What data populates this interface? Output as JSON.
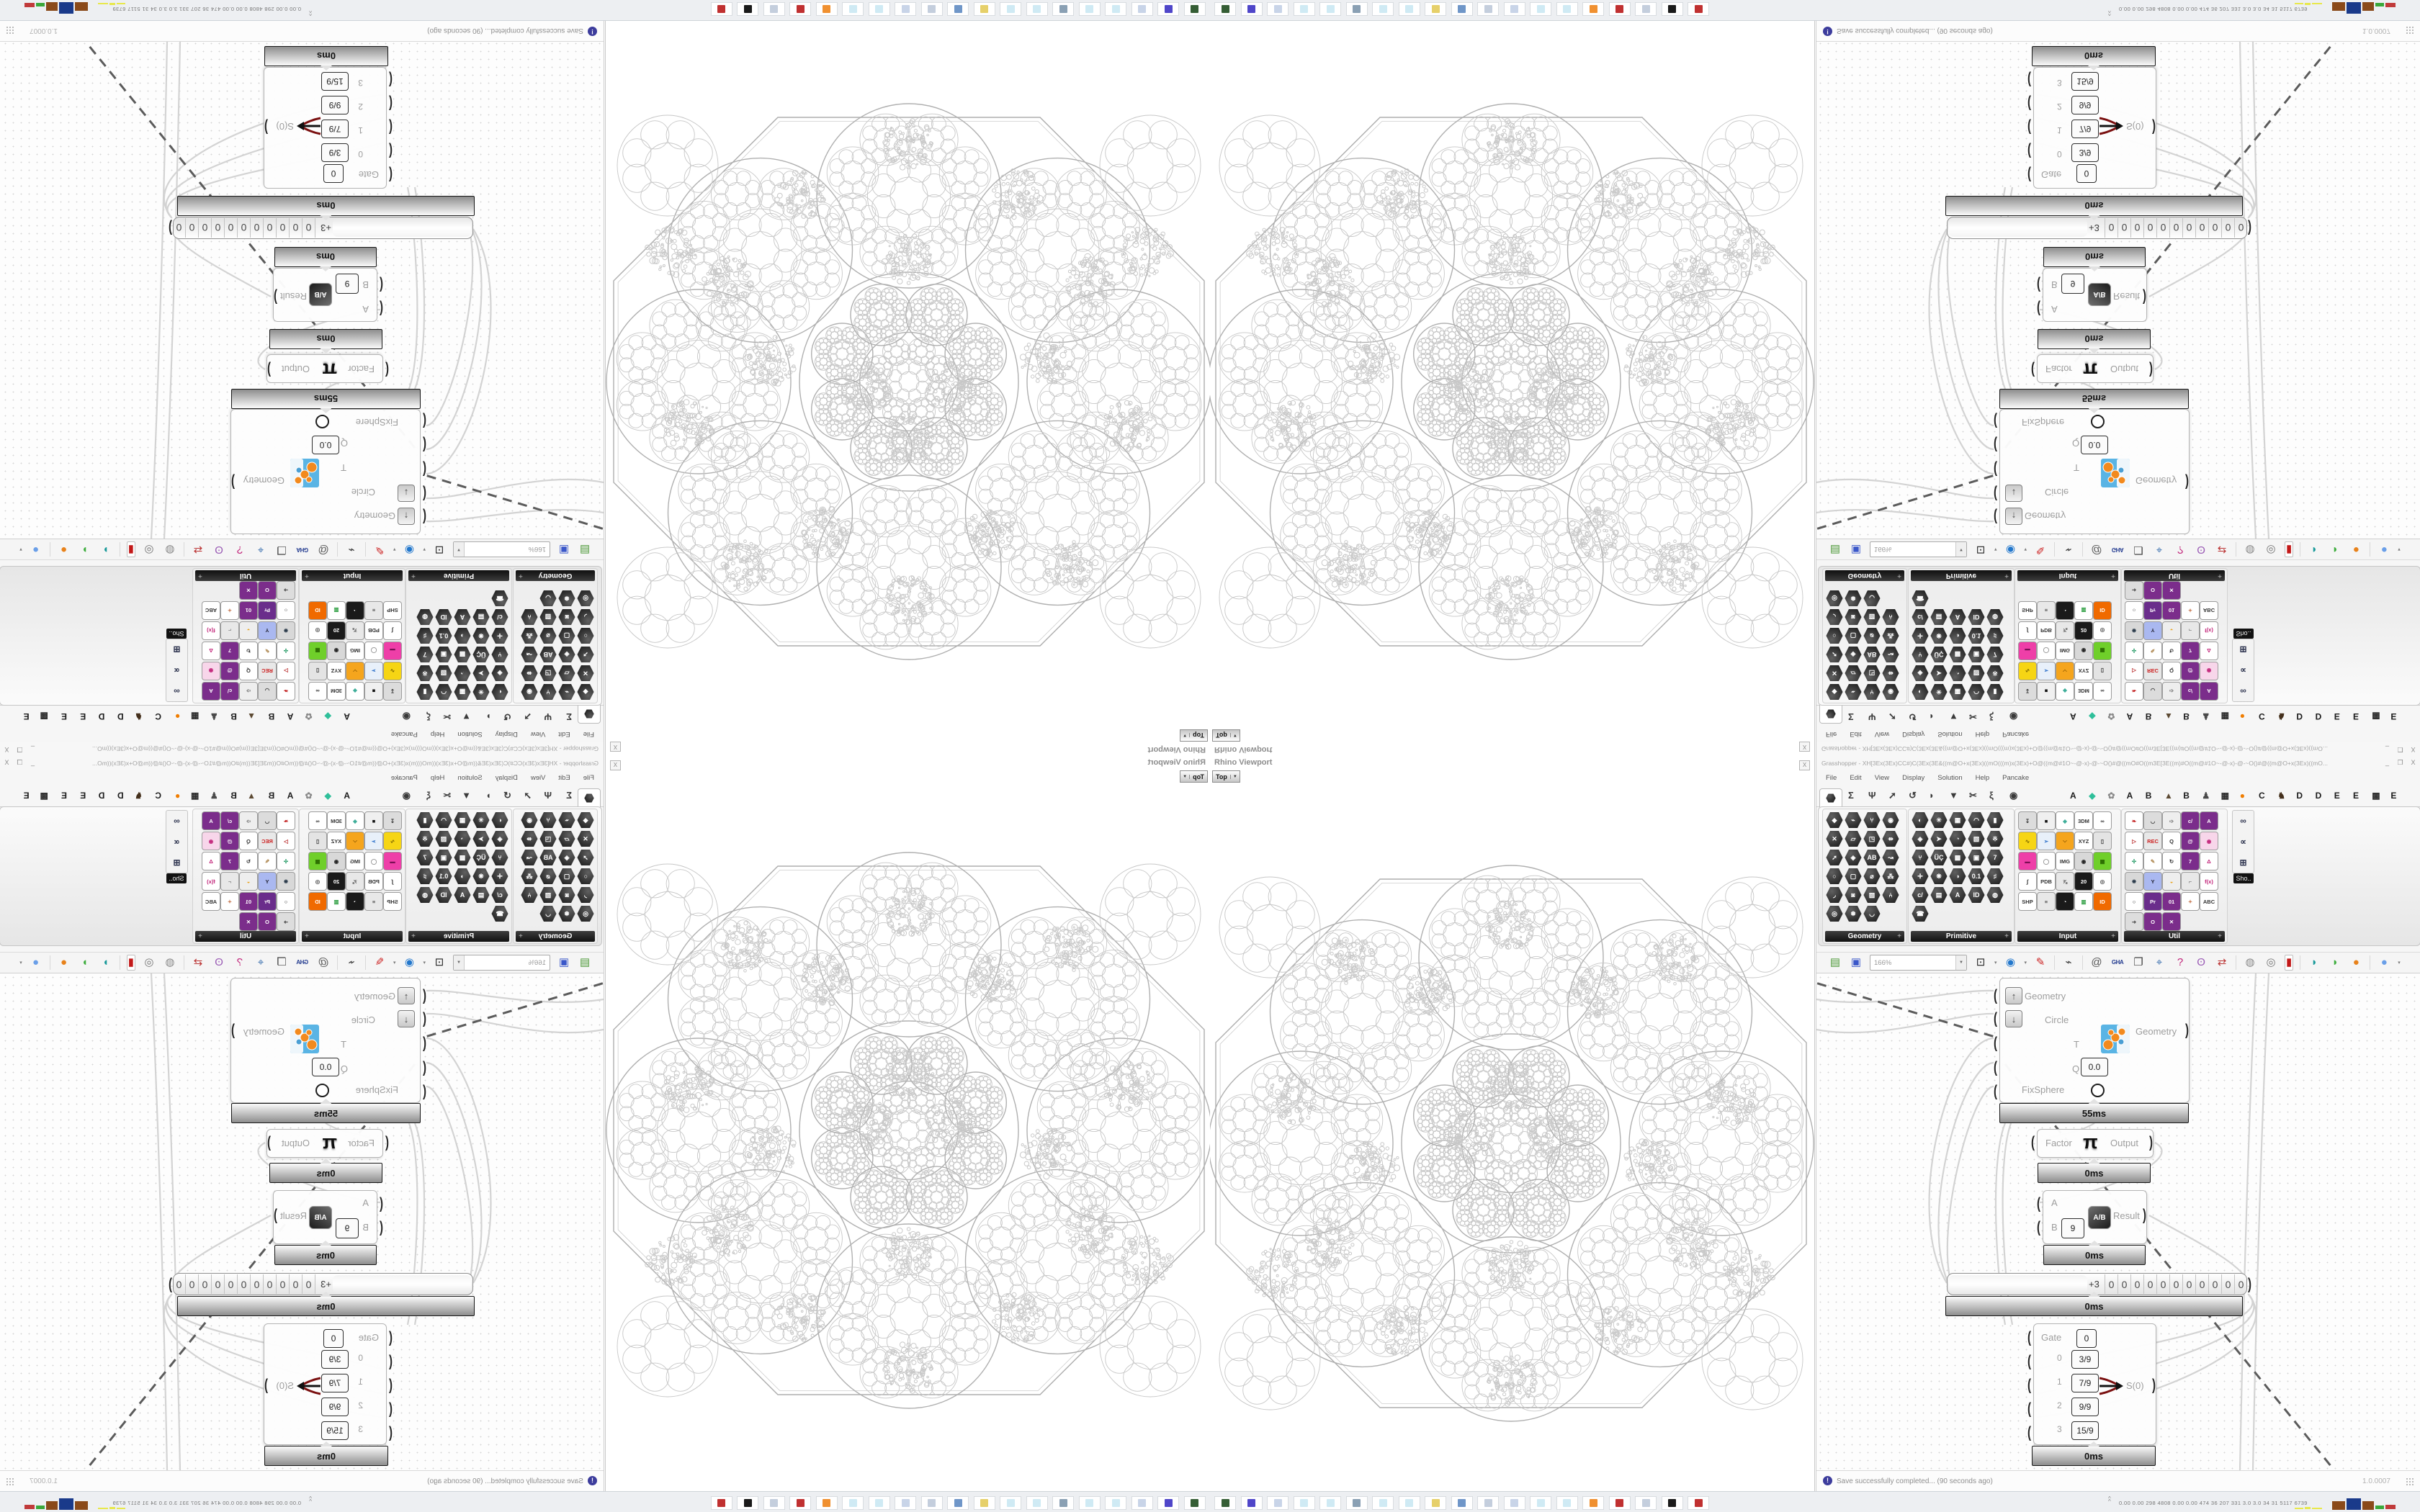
{
  "window": {
    "title": "Grasshopper - XH[3Ex(3Ex)CC#)C(3Ex(3E&((m@O+x(3Ex)((mO(((m)x(3Ex)+O@((m@#1O~-@-x)-@-~O()#@((mO#O((m3E[3E((m)#O((m@#1O~-@-x)-@-~O()#@((m@O+x(3Ex)((mO...",
    "controls": [
      "_",
      "❐",
      "X"
    ]
  },
  "rhino": {
    "panel_title": "Rhino Viewport",
    "viewport_tab": "Top",
    "close_label": "X"
  },
  "menu": {
    "items": [
      "File",
      "Edit",
      "View",
      "Display",
      "Solution",
      "Help",
      "Pancake"
    ]
  },
  "tabs": {
    "standard": [
      "Σ",
      "Ψ",
      "➚",
      "↺",
      "◗",
      "▼",
      "✂",
      "ξ",
      "◉"
    ],
    "plugins": [
      {
        "label": "A",
        "color": "#1a1a1a"
      },
      {
        "label": "◆",
        "color": "#2fbf9a"
      },
      {
        "label": "✿",
        "color": "#8a8a8a"
      },
      {
        "label": "A",
        "color": "#1a1a1a"
      },
      {
        "label": "B",
        "color": "#1a1a1a"
      },
      {
        "label": "▲",
        "color": "#5d4a33"
      },
      {
        "label": "B",
        "color": "#1a1a1a"
      },
      {
        "label": "♟",
        "color": "#4a4a4a"
      },
      {
        "label": "▦",
        "color": "#2a2a2a"
      },
      {
        "label": "●",
        "color": "#f07d00"
      },
      {
        "label": "C",
        "color": "#1a1a1a"
      },
      {
        "label": "♞",
        "color": "#44301c"
      },
      {
        "label": "D",
        "color": "#1a1a1a"
      },
      {
        "label": "D",
        "color": "#1a1a1a"
      },
      {
        "label": "E",
        "color": "#1a1a1a"
      },
      {
        "label": "E",
        "color": "#1a1a1a"
      },
      {
        "label": "▩",
        "color": "#2a2a2a"
      },
      {
        "label": "E",
        "color": "#1a1a1a"
      }
    ]
  },
  "panel": {
    "more_label": "+",
    "groups": [
      {
        "name": "Geometry",
        "type": "hex",
        "cols": 4,
        "icons": [
          "◆",
          "⌁",
          "⑂",
          "◉",
          "✕",
          "▱",
          "◳",
          "⇻",
          "➚",
          "◈",
          "AB",
          "↝",
          "○",
          "▢",
          "⌀",
          "⁂",
          "◞",
          "◙",
          "▨",
          "⑃",
          "◎",
          "❅",
          "◡"
        ]
      },
      {
        "name": "Primitive",
        "type": "hex",
        "cols": 5,
        "icons": [
          "◐",
          "✳",
          "▦",
          "◠",
          "▮",
          "◈",
          "➤",
          "◔",
          "▧",
          "※",
          "⑂",
          "ÜÇ",
          "▩",
          "▣",
          "7",
          "✛",
          "❋",
          "◑",
          "0.1",
          "♯",
          "c/",
          "▤",
          "A",
          "ID",
          "◍",
          "☎"
        ]
      },
      {
        "name": "Input",
        "type": "color",
        "cols": 5,
        "icons": [
          {
            "g": "↧",
            "c": "#dcdcdc",
            "f": "#333"
          },
          {
            "g": "■",
            "c": "#f0f0f0",
            "f": "#111"
          },
          {
            "g": "◆",
            "c": "#ffffff",
            "f": "#3fae9a"
          },
          {
            "g": "3DM",
            "c": "#ffffff",
            "f": "#333"
          },
          {
            "g": "∞",
            "c": "#ffffff",
            "f": "#333"
          },
          {
            "g": "∿",
            "c": "#f6d514",
            "f": "#7a6400"
          },
          {
            "g": "➢",
            "c": "#e8f0fa",
            "f": "#2b6fc9"
          },
          {
            "g": "⌵",
            "c": "#f5a51d",
            "f": "#8a5800"
          },
          {
            "g": "XYZ",
            "c": "#ffffff",
            "f": "#333"
          },
          {
            "g": "▯",
            "c": "#e4e4e4",
            "f": "#333"
          },
          {
            "g": "▬",
            "c": "#ee3fa8",
            "f": "#7a1054"
          },
          {
            "g": "◯",
            "c": "#ffffff",
            "f": "#888"
          },
          {
            "g": "IMG",
            "c": "#ffffff",
            "f": "#333"
          },
          {
            "g": "◉",
            "c": "#d8d8d8",
            "f": "#222"
          },
          {
            "g": "▦",
            "c": "#6fcf2a",
            "f": "#2a6a00"
          },
          {
            "g": "∫",
            "c": "#ffffff",
            "f": "#222"
          },
          {
            "g": "PDB",
            "c": "#ffffff",
            "f": "#333"
          },
          {
            "g": "⅞",
            "c": "#e8e8e8",
            "f": "#333"
          },
          {
            "g": "20",
            "c": "#1a1a1a",
            "f": "#fff"
          },
          {
            "g": "◎",
            "c": "#ffffff",
            "f": "#555"
          },
          {
            "g": "SHP",
            "c": "#ffffff",
            "f": "#333"
          },
          {
            "g": "≡",
            "c": "#e8e8e8",
            "f": "#333"
          },
          {
            "g": "◔",
            "c": "#1a1a1a",
            "f": "#fff"
          },
          {
            "g": "▥",
            "c": "#ffffff",
            "f": "#2a9d3f"
          },
          {
            "g": "ID",
            "c": "#f06a00",
            "f": "#fff"
          }
        ]
      },
      {
        "name": "Util",
        "type": "color",
        "cols": 5,
        "icons": [
          {
            "g": "❧",
            "c": "#ffffff",
            "f": "#c01818"
          },
          {
            "g": "◡",
            "c": "#dcdcdc",
            "f": "#333"
          },
          {
            "g": "➩",
            "c": "#eeeeee",
            "f": "#777"
          },
          {
            "g": "c/",
            "c": "#7b2d8b",
            "f": "#fff"
          },
          {
            "g": "A",
            "c": "#7b2d8b",
            "f": "#fff"
          },
          {
            "g": "▷",
            "c": "#ffffff",
            "f": "#bb3333"
          },
          {
            "g": "REC",
            "c": "#e8e8e8",
            "f": "#cc2222"
          },
          {
            "g": "Q",
            "c": "#ffffff",
            "f": "#333"
          },
          {
            "g": "@",
            "c": "#7b2d8b",
            "f": "#fff"
          },
          {
            "g": "◉",
            "c": "#f8d6ea",
            "f": "#c2257a"
          },
          {
            "g": "✣",
            "c": "#ffffff",
            "f": "#2a9d6a"
          },
          {
            "g": "✎",
            "c": "#ffffff",
            "f": "#b08a55"
          },
          {
            "g": "↻",
            "c": "#ffffff",
            "f": "#333"
          },
          {
            "g": "7",
            "c": "#7b2d8b",
            "f": "#fff"
          },
          {
            "g": "Δ",
            "c": "#ffffff",
            "f": "#c2257a"
          },
          {
            "g": "❋",
            "c": "#d8d8d8",
            "f": "#223344"
          },
          {
            "g": "Y",
            "c": "#aab8f0",
            "f": "#222233"
          },
          {
            "g": "◒",
            "c": "#eeeeee",
            "f": "#e8a21a"
          },
          {
            "g": "⌐",
            "c": "#e8e8e8",
            "f": "#555"
          },
          {
            "g": "f(x)",
            "c": "#ffffff",
            "f": "#c2257a"
          },
          {
            "g": "○",
            "c": "#ffffff",
            "f": "#333"
          },
          {
            "g": "Pr",
            "c": "#6a2d8b",
            "f": "#fff"
          },
          {
            "g": "01",
            "c": "#7b2d8b",
            "f": "#fff"
          },
          {
            "g": "✦",
            "c": "#ffffff",
            "f": "#cc8866"
          },
          {
            "g": "ABC",
            "c": "#ffffff",
            "f": "#333"
          },
          {
            "g": "➜",
            "c": "#dddddd",
            "f": "#555"
          },
          {
            "g": "O",
            "c": "#7b2d8b",
            "f": "#fff"
          },
          {
            "g": "✕",
            "c": "#7b2d8b",
            "f": "#fff"
          }
        ]
      }
    ],
    "show_panel": {
      "label": "Sho..",
      "icons": [
        "∞",
        "∝",
        "⊞"
      ]
    }
  },
  "toolbar": {
    "zoom_value": "166%",
    "icons": [
      {
        "name": "open-file-button",
        "glyph": "▤",
        "color": "#4e9a3a"
      },
      {
        "name": "save-file-button",
        "glyph": "▣",
        "color": "#3a57c9"
      },
      {
        "name": "zoom-extents-button",
        "glyph": "⊡",
        "color": "#222",
        "caret": true
      },
      {
        "name": "preview-settings-button",
        "glyph": "◉",
        "color": "#2277cc",
        "caret": true
      },
      {
        "name": "sketch-pen-button",
        "glyph": "✎",
        "color": "#cc2222"
      },
      {
        "name": "hide-preview-button",
        "glyph": "⌁",
        "color": "#333",
        "sep": true
      },
      {
        "name": "remote-control-button",
        "glyph": "@",
        "color": "#555",
        "sep": true
      },
      {
        "name": "gha-installer-button",
        "glyph": "GHA",
        "color": "#223a8f"
      },
      {
        "name": "new-window-button",
        "glyph": "❐",
        "color": "#444"
      },
      {
        "name": "search-button",
        "glyph": "⌖",
        "color": "#3a6fae"
      },
      {
        "name": "help-button",
        "glyph": "?",
        "color": "#c2257a"
      },
      {
        "name": "suggestions-button",
        "glyph": "ʘ",
        "color": "#9a5bb5"
      },
      {
        "name": "wire-display-button",
        "glyph": "⇄",
        "color": "#b33"
      },
      {
        "name": "bake-pot-button",
        "glyph": "◍",
        "color": "#888",
        "sep": true
      },
      {
        "name": "cluster-ring-button",
        "glyph": "◎",
        "color": "#777"
      },
      {
        "name": "bake-selected-button",
        "glyph": "▮",
        "color": "#c21818",
        "boxed": true
      },
      {
        "name": "material-teal-button",
        "glyph": "◗",
        "color": "#1a9a9a",
        "sep": true
      },
      {
        "name": "material-green-button",
        "glyph": "◗",
        "color": "#3fae3f"
      },
      {
        "name": "material-orange-button",
        "glyph": "●",
        "color": "#e8821a"
      },
      {
        "name": "material-blue-button",
        "glyph": "●",
        "color": "#6a9fe8",
        "sep": true,
        "caret": true
      }
    ]
  },
  "canvas": {
    "nodes": {
      "fixsphere": {
        "inputs": [
          "Geometry",
          "Circle",
          "T",
          "Q",
          "FixSphere"
        ],
        "q_value": "0.0",
        "output": "Geometry",
        "time": "55ms"
      },
      "pi": {
        "input": "Factor",
        "glyph": "π",
        "output": "Output",
        "time": "0ms"
      },
      "division": {
        "input_a": "A",
        "input_b": "B",
        "b_value": "9",
        "icon": "A/B",
        "output": "Result",
        "time": "0ms"
      },
      "scroller": {
        "sign": "+",
        "integer": "3",
        "digits": [
          "0",
          "0",
          "0",
          "0",
          "0",
          "0",
          "0",
          "0",
          "0",
          "0",
          "0"
        ],
        "time": "0ms"
      },
      "gate": {
        "label": "Gate",
        "value": "0",
        "rows": [
          {
            "index": "0",
            "value": "3/9"
          },
          {
            "index": "1",
            "value": "7/9"
          },
          {
            "index": "2",
            "value": "9/9"
          },
          {
            "index": "3",
            "value": "15/9"
          }
        ],
        "output": "S(0)",
        "time": "0ms"
      }
    },
    "status": {
      "message": "Save successfully completed... (90 seconds ago)",
      "version": "1.0.0007"
    }
  },
  "taskbar": {
    "stats": "0.00 0.00  298 4808 0.00 0.00  474   36   207   331   3.0   3.0   34   31  5117 6739",
    "icon_colors": [
      "#355e35",
      "#4f46c9",
      "#c8d4e8",
      "#cfeaf4",
      "#cfeaf4",
      "#8aa0b4",
      "#cfeaf4",
      "#cfeaf4",
      "#e6d06a",
      "#6f96c8",
      "#c4cedd",
      "#c8d4e8",
      "#cfeaf4",
      "#cfeaf4",
      "#f09030",
      "#c03030",
      "#c4cedd",
      "#1a1a1a",
      "#c03030"
    ],
    "graph_colors": [
      "#e8e84a",
      "#8a4a1a",
      "#1a3a8a",
      "#8a4a1a",
      "#3aa83a",
      "#c03a3a"
    ]
  }
}
